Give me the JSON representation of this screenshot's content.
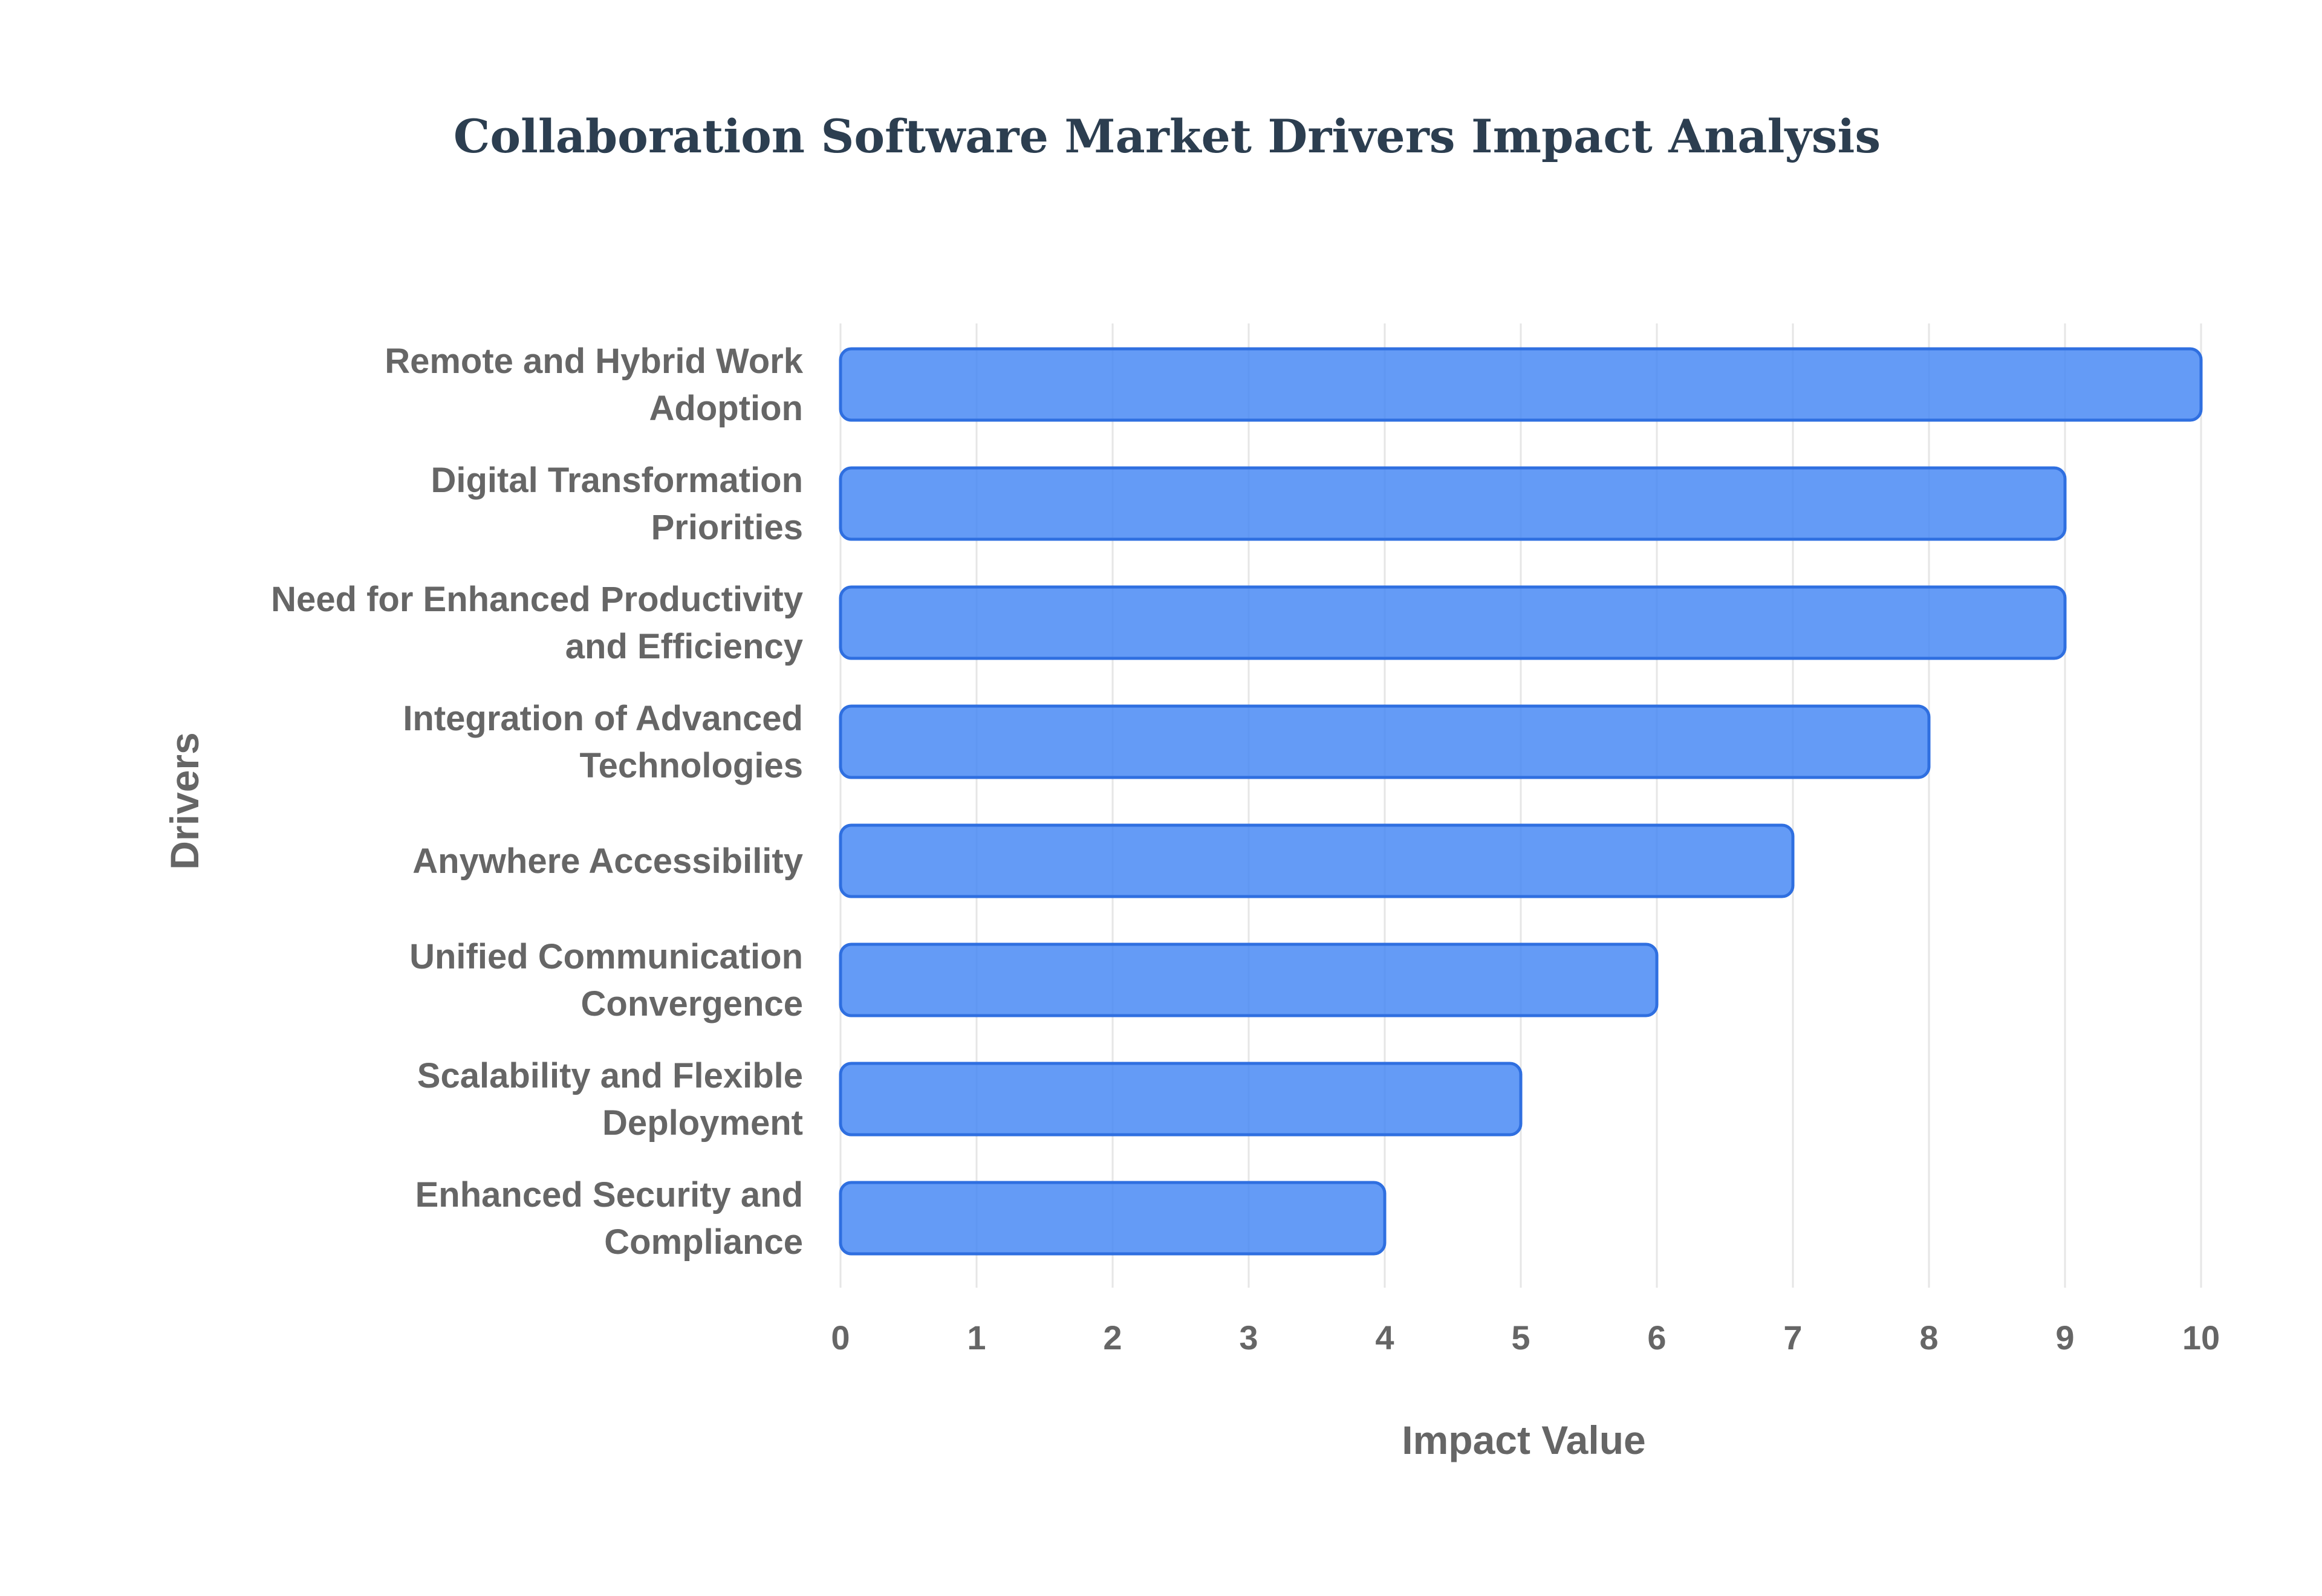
{
  "chart_data": {
    "type": "bar",
    "orientation": "horizontal",
    "title": "Collaboration Software Market Drivers Impact Analysis",
    "xlabel": "Impact Value",
    "ylabel": "Drivers",
    "xlim": [
      0,
      10
    ],
    "xticks": [
      "0",
      "1",
      "2",
      "3",
      "4",
      "5",
      "6",
      "7",
      "8",
      "9",
      "10"
    ],
    "grid": true,
    "bar_color": "#4285f4",
    "categories": [
      [
        "Remote and Hybrid Work",
        "Adoption"
      ],
      [
        "Digital Transformation",
        "Priorities"
      ],
      [
        "Need for Enhanced Productivity",
        "and Efficiency"
      ],
      [
        "Integration of Advanced",
        "Technologies"
      ],
      [
        "Anywhere Accessibility"
      ],
      [
        "Unified Communication",
        "Convergence"
      ],
      [
        "Scalability and Flexible",
        "Deployment"
      ],
      [
        "Enhanced Security and",
        "Compliance"
      ]
    ],
    "values": [
      10,
      9,
      9,
      8,
      7,
      6,
      5,
      4
    ]
  }
}
